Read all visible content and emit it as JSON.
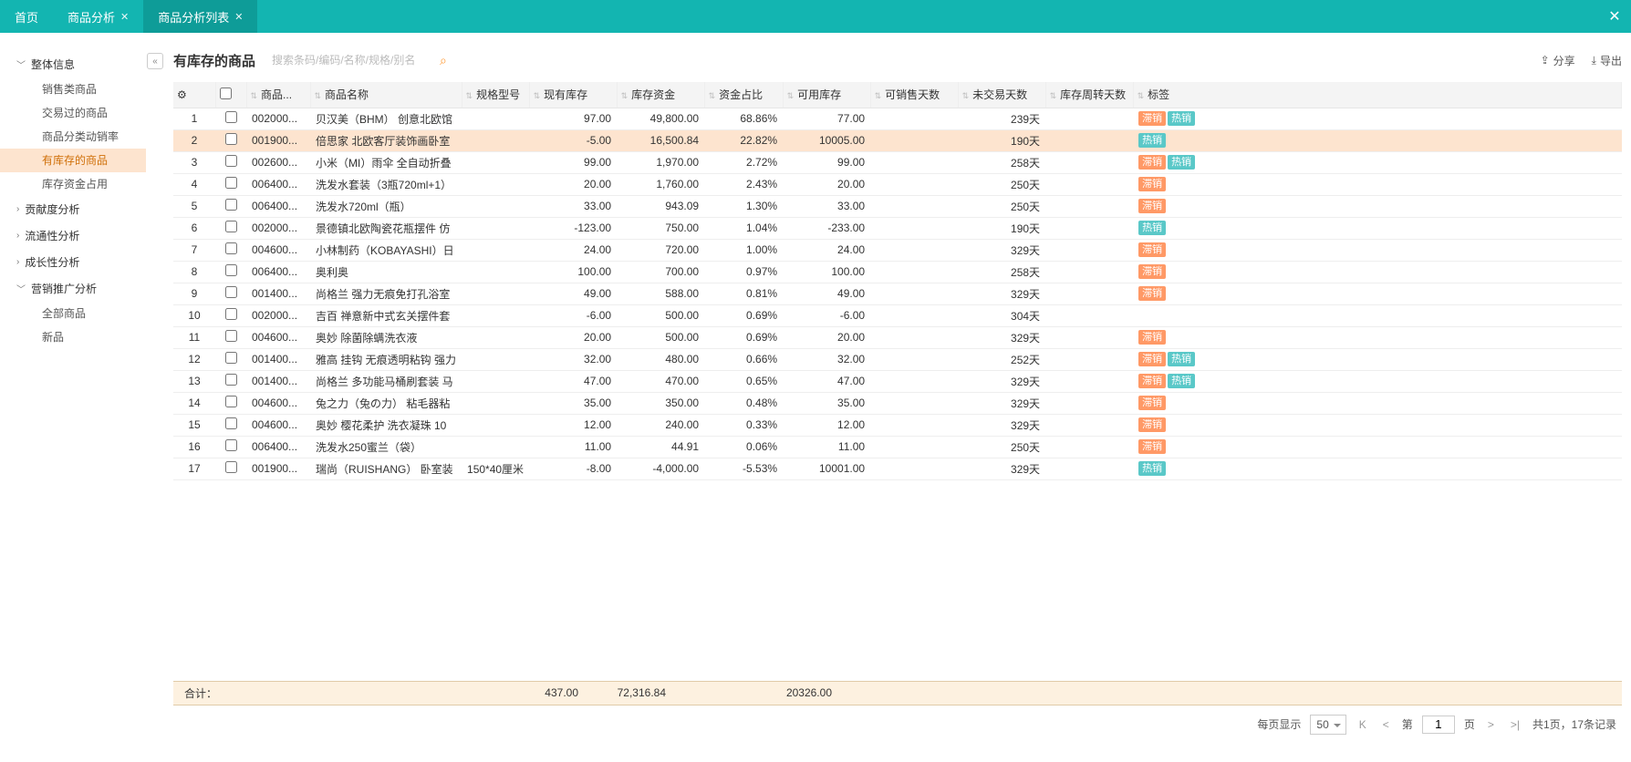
{
  "tabs": {
    "items": [
      {
        "label": "首页",
        "closable": false,
        "active": false
      },
      {
        "label": "商品分析",
        "closable": true,
        "active": false
      },
      {
        "label": "商品分析列表",
        "closable": true,
        "active": true
      }
    ]
  },
  "sidebar": {
    "groups": [
      {
        "title": "整体信息",
        "expanded": true,
        "items": [
          {
            "label": "销售类商品"
          },
          {
            "label": "交易过的商品"
          },
          {
            "label": "商品分类动销率"
          },
          {
            "label": "有库存的商品",
            "active": true
          },
          {
            "label": "库存资金占用"
          }
        ]
      },
      {
        "title": "贡献度分析",
        "expanded": false
      },
      {
        "title": "流通性分析",
        "expanded": false
      },
      {
        "title": "成长性分析",
        "expanded": false
      },
      {
        "title": "营销推广分析",
        "expanded": true,
        "items": [
          {
            "label": "全部商品"
          },
          {
            "label": "新品"
          }
        ]
      }
    ]
  },
  "header": {
    "title": "有库存的商品",
    "search_placeholder": "搜索条码/编码/名称/规格/别名",
    "share_label": "分享",
    "export_label": "导出"
  },
  "table": {
    "columns": {
      "code": "商品...",
      "name": "商品名称",
      "spec": "规格型号",
      "stock": "现有库存",
      "fund": "库存资金",
      "fund_pct": "资金占比",
      "avail": "可用库存",
      "sale_days": "可销售天数",
      "no_trade_days": "未交易天数",
      "turnover_days": "库存周转天数",
      "tags": "标签"
    },
    "rows": [
      {
        "idx": 1,
        "code": "002000...",
        "name": "贝汉美（BHM） 创意北欧馆",
        "spec": "",
        "stock": "97.00",
        "fund": "49,800.00",
        "pct": "68.86%",
        "avail": "77.00",
        "sdays": "",
        "ntd": "239天",
        "turn": "",
        "tags": [
          "滞销",
          "热销"
        ]
      },
      {
        "idx": 2,
        "code": "001900...",
        "name": "倍思家 北欧客厅装饰画卧室",
        "spec": "",
        "stock": "-5.00",
        "fund": "16,500.84",
        "pct": "22.82%",
        "avail": "10005.00",
        "sdays": "",
        "ntd": "190天",
        "turn": "",
        "tags": [
          "热销"
        ],
        "hl": true
      },
      {
        "idx": 3,
        "code": "002600...",
        "name": "小米（MI）雨伞 全自动折叠",
        "spec": "",
        "stock": "99.00",
        "fund": "1,970.00",
        "pct": "2.72%",
        "avail": "99.00",
        "sdays": "",
        "ntd": "258天",
        "turn": "",
        "tags": [
          "滞销",
          "热销"
        ]
      },
      {
        "idx": 4,
        "code": "006400...",
        "name": "洗发水套装（3瓶720ml+1）",
        "spec": "",
        "stock": "20.00",
        "fund": "1,760.00",
        "pct": "2.43%",
        "avail": "20.00",
        "sdays": "",
        "ntd": "250天",
        "turn": "",
        "tags": [
          "滞销"
        ]
      },
      {
        "idx": 5,
        "code": "006400...",
        "name": "洗发水720ml（瓶）",
        "spec": "",
        "stock": "33.00",
        "fund": "943.09",
        "pct": "1.30%",
        "avail": "33.00",
        "sdays": "",
        "ntd": "250天",
        "turn": "",
        "tags": [
          "滞销"
        ]
      },
      {
        "idx": 6,
        "code": "002000...",
        "name": "景德镇北欧陶瓷花瓶摆件 仿",
        "spec": "",
        "stock": "-123.00",
        "fund": "750.00",
        "pct": "1.04%",
        "avail": "-233.00",
        "sdays": "",
        "ntd": "190天",
        "turn": "",
        "tags": [
          "热销"
        ]
      },
      {
        "idx": 7,
        "code": "004600...",
        "name": "小林制药（KOBAYASHI）日",
        "spec": "",
        "stock": "24.00",
        "fund": "720.00",
        "pct": "1.00%",
        "avail": "24.00",
        "sdays": "",
        "ntd": "329天",
        "turn": "",
        "tags": [
          "滞销"
        ]
      },
      {
        "idx": 8,
        "code": "006400...",
        "name": "奥利奥",
        "spec": "",
        "stock": "100.00",
        "fund": "700.00",
        "pct": "0.97%",
        "avail": "100.00",
        "sdays": "",
        "ntd": "258天",
        "turn": "",
        "tags": [
          "滞销"
        ]
      },
      {
        "idx": 9,
        "code": "001400...",
        "name": "尚格兰 强力无痕免打孔浴室",
        "spec": "",
        "stock": "49.00",
        "fund": "588.00",
        "pct": "0.81%",
        "avail": "49.00",
        "sdays": "",
        "ntd": "329天",
        "turn": "",
        "tags": [
          "滞销"
        ]
      },
      {
        "idx": 10,
        "code": "002000...",
        "name": "吉百 禅意新中式玄关摆件套",
        "spec": "",
        "stock": "-6.00",
        "fund": "500.00",
        "pct": "0.69%",
        "avail": "-6.00",
        "sdays": "",
        "ntd": "304天",
        "turn": "",
        "tags": []
      },
      {
        "idx": 11,
        "code": "004600...",
        "name": "奥妙 除菌除螨洗衣液",
        "spec": "",
        "stock": "20.00",
        "fund": "500.00",
        "pct": "0.69%",
        "avail": "20.00",
        "sdays": "",
        "ntd": "329天",
        "turn": "",
        "tags": [
          "滞销"
        ]
      },
      {
        "idx": 12,
        "code": "001400...",
        "name": "雅高 挂钩 无痕透明粘钩 强力",
        "spec": "",
        "stock": "32.00",
        "fund": "480.00",
        "pct": "0.66%",
        "avail": "32.00",
        "sdays": "",
        "ntd": "252天",
        "turn": "",
        "tags": [
          "滞销",
          "热销"
        ]
      },
      {
        "idx": 13,
        "code": "001400...",
        "name": "尚格兰 多功能马桶刷套装 马",
        "spec": "",
        "stock": "47.00",
        "fund": "470.00",
        "pct": "0.65%",
        "avail": "47.00",
        "sdays": "",
        "ntd": "329天",
        "turn": "",
        "tags": [
          "滞销",
          "热销"
        ]
      },
      {
        "idx": 14,
        "code": "004600...",
        "name": "兔之力（兔の力） 粘毛器粘",
        "spec": "",
        "stock": "35.00",
        "fund": "350.00",
        "pct": "0.48%",
        "avail": "35.00",
        "sdays": "",
        "ntd": "329天",
        "turn": "",
        "tags": [
          "滞销"
        ]
      },
      {
        "idx": 15,
        "code": "004600...",
        "name": "奥妙 樱花柔护 洗衣凝珠 10",
        "spec": "",
        "stock": "12.00",
        "fund": "240.00",
        "pct": "0.33%",
        "avail": "12.00",
        "sdays": "",
        "ntd": "329天",
        "turn": "",
        "tags": [
          "滞销"
        ]
      },
      {
        "idx": 16,
        "code": "006400...",
        "name": "洗发水250蜜兰（袋）",
        "spec": "",
        "stock": "11.00",
        "fund": "44.91",
        "pct": "0.06%",
        "avail": "11.00",
        "sdays": "",
        "ntd": "250天",
        "turn": "",
        "tags": [
          "滞销"
        ]
      },
      {
        "idx": 17,
        "code": "001900...",
        "name": "瑞尚（RUISHANG） 卧室装",
        "spec": "150*40厘米",
        "stock": "-8.00",
        "fund": "-4,000.00",
        "pct": "-5.53%",
        "avail": "10001.00",
        "sdays": "",
        "ntd": "329天",
        "turn": "",
        "tags": [
          "热销"
        ]
      }
    ],
    "sum": {
      "label": "合计：",
      "stock": "437.00",
      "fund": "72,316.84",
      "avail": "20326.00"
    },
    "tag_labels": {
      "slow": "滞销",
      "hot": "热销"
    }
  },
  "pagination": {
    "per_page_label": "每页显示",
    "per_page_value": "50",
    "page_sep_label": "第",
    "page_value": "1",
    "page_unit": "页",
    "summary": "共1页，17条记录"
  }
}
